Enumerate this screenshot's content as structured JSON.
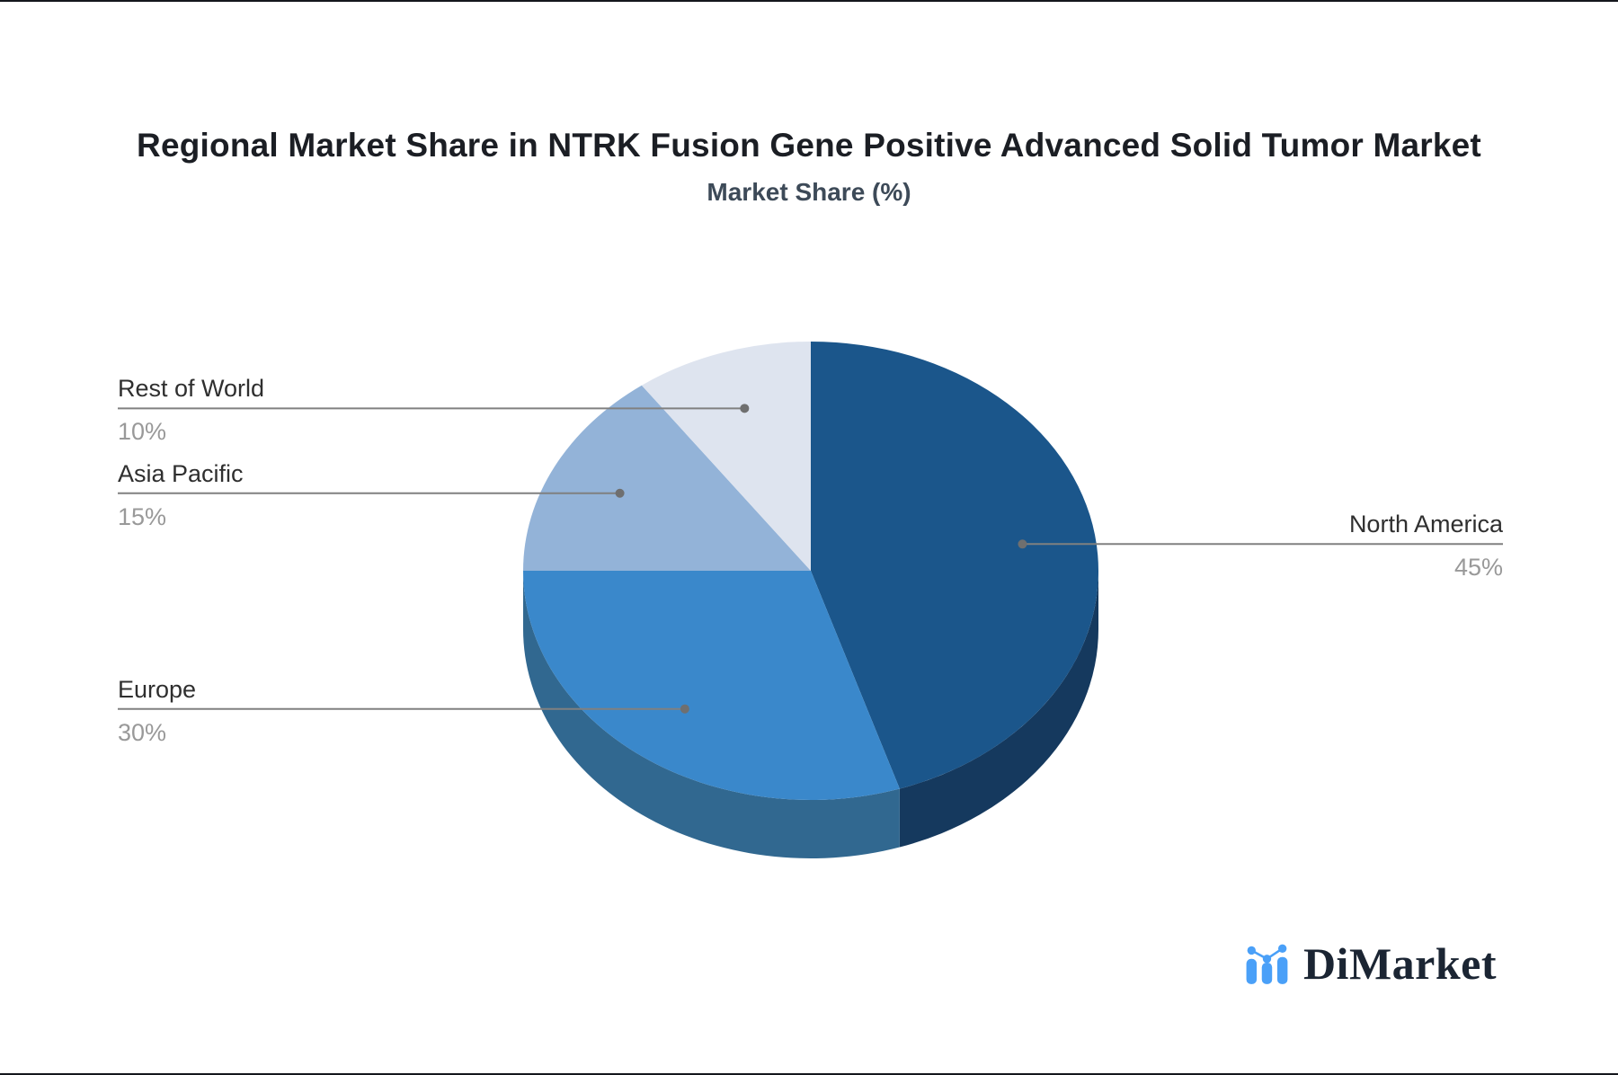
{
  "page": {
    "background_color": "#ffffff",
    "frame_line_color": "#14171d"
  },
  "chart_data": {
    "type": "pie",
    "style": "3d",
    "title": "Regional Market Share in NTRK Fusion Gene Positive Advanced Solid Tumor Market",
    "subtitle": "Market Share (%)",
    "unit": "%",
    "start_angle_deg": 0,
    "direction": "clockwise",
    "categories": [
      "North America",
      "Europe",
      "Asia Pacific",
      "Rest of World"
    ],
    "values": [
      45,
      30,
      15,
      10
    ],
    "slices": [
      {
        "label": "North America",
        "value": 45,
        "pct_label": "45%",
        "color": "#1B568B",
        "side_color": "#15395E",
        "label_side": "right"
      },
      {
        "label": "Europe",
        "value": 30,
        "pct_label": "30%",
        "color": "#3A88CB",
        "side_color": "#316890",
        "label_side": "left"
      },
      {
        "label": "Asia Pacific",
        "value": 15,
        "pct_label": "15%",
        "color": "#93B3D8",
        "side_color": "#7D9CC0",
        "label_side": "left"
      },
      {
        "label": "Rest of World",
        "value": 10,
        "pct_label": "10%",
        "color": "#DEE4EF",
        "side_color": "#BCC4D4",
        "label_side": "left"
      }
    ],
    "title_color": "#1b1e24",
    "subtitle_color": "#3d4a58",
    "label_color": "#2f2f2f",
    "value_color": "#999999",
    "leader_line_color": "#808080",
    "leader_dot_color": "#6f6f6f",
    "legend_position": "callout-labels"
  },
  "branding": {
    "logo_text": "DiMarket",
    "logo_icon": "bar-chart-logo-icon",
    "logo_text_color": "#1b2533",
    "logo_accent_color": "#4AA0F8"
  }
}
